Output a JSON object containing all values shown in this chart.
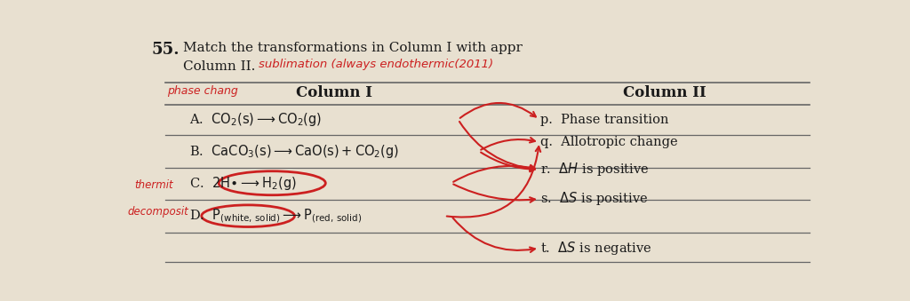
{
  "bg_color": "#e8e0d0",
  "text_color": "#1a1a1a",
  "red_color": "#cc2020",
  "line_color": "#666666",
  "question_num": "55.",
  "q_line1": "Match the transformations in Column I with appr",
  "q_line2": "Column II.",
  "red_note": "sublimation (always endothermic(2011)",
  "col1_header": "Column I",
  "col2_header": "Column II",
  "col1_A": "A.  $\\mathrm{CO_2(s)\\longrightarrow CO_2(g)}$",
  "col1_B": "B.  $\\mathrm{CaCO_3(s)\\longrightarrow CaO(s)+CO_2(g)}$",
  "col1_C": "C.  $\\mathrm{2H{\\bullet}\\longrightarrow H_2(g)}$",
  "col1_D": "D.  $\\mathrm{P_{(white,\\,solid)}\\longrightarrow P_{(red,\\,solid)}}$",
  "col2_p": "p.  Phase transition",
  "col2_q": "q.  Allotropic change",
  "col2_r": "r.  $\\Delta H$ is positive",
  "col2_s": "s.  $\\Delta S$ is positive",
  "col2_t": "t.  $\\Delta S$ is negative",
  "hw_phase": "phase chang",
  "hw_thermit": "thermit",
  "hw_decomp": "decomposit"
}
